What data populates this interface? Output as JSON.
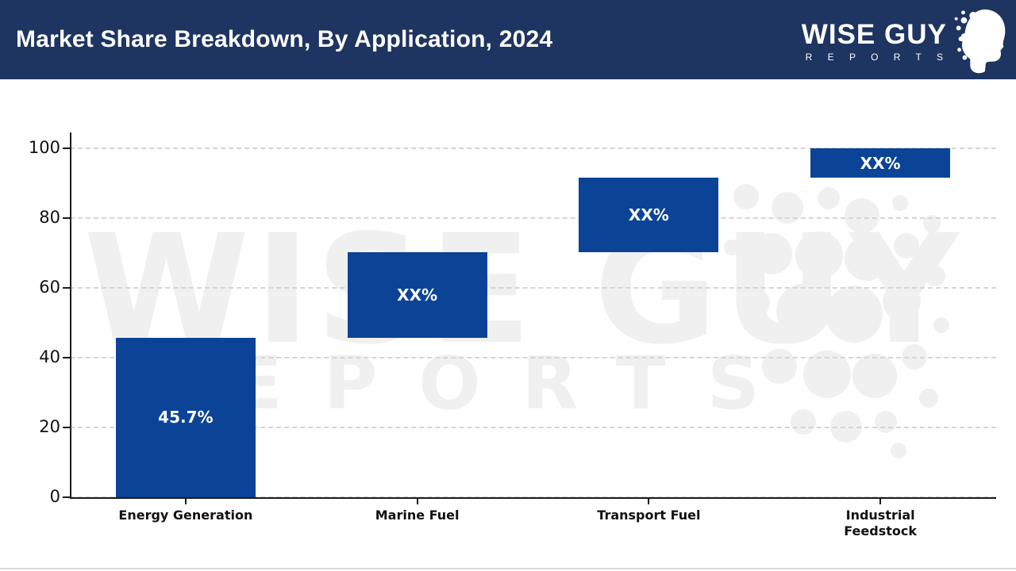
{
  "header": {
    "title": "Market Share Breakdown, By Application, 2024",
    "background_color": "#1e3461",
    "logo": {
      "line1": "WISE GUY",
      "line2": "R E P O R T S",
      "head_icon": "dotted-profile-head-icon"
    }
  },
  "watermark": {
    "line1": "WISE GUY",
    "line2": "REPORTS",
    "head_icon": "dotted-profile-head-icon",
    "color": "#f0f0f1"
  },
  "chart_data": {
    "type": "bar",
    "subtype": "waterfall",
    "title": "Market Share Breakdown, By Application, 2024",
    "categories": [
      "Energy Generation",
      "Marine Fuel",
      "Transport Fuel",
      "Industrial Feedstock"
    ],
    "categories_display": [
      "Energy Generation",
      "Marine Fuel",
      "Transport Fuel",
      "Industrial\nFeedstock"
    ],
    "segments": [
      {
        "category": "Energy Generation",
        "start": 0,
        "end": 45.7,
        "value": 45.7,
        "data_label": "45.7%"
      },
      {
        "category": "Marine Fuel",
        "start": 45.7,
        "end": 70.2,
        "value": 24.5,
        "data_label": "XX%"
      },
      {
        "category": "Transport Fuel",
        "start": 70.2,
        "end": 91.5,
        "value": 21.3,
        "data_label": "XX%"
      },
      {
        "category": "Industrial Feedstock",
        "start": 91.5,
        "end": 100,
        "value": 8.5,
        "data_label": "XX%"
      }
    ],
    "xlabel": "",
    "ylabel": "",
    "ylim": [
      0,
      100
    ],
    "yticks": [
      0,
      20,
      40,
      60,
      80,
      100
    ],
    "bar_color": "#0b4397",
    "label_color": "#ffffff",
    "grid": {
      "horizontal": true,
      "style": "dashed",
      "color": "#d5d5d5"
    },
    "axis_color": "#1a1a1a",
    "legend": "none"
  }
}
